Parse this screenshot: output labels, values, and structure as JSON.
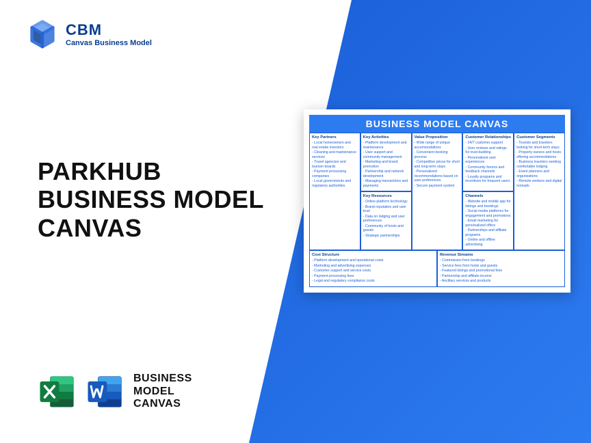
{
  "brand": {
    "abbr": "CBM",
    "tagline": "Canvas Business Model"
  },
  "main_title": {
    "line1": "PARKHUB",
    "line2": "BUSINESS MODEL",
    "line3": "CANVAS"
  },
  "footer_label": {
    "line1": "BUSINESS",
    "line2": "MODEL",
    "line3": "CANVAS"
  },
  "colors": {
    "blue": "#2d7bf0",
    "dark_blue": "#0a3d91",
    "excel": "#1e7244",
    "excel_light": "#21a366",
    "word": "#2b579a",
    "word_light": "#41a5ee"
  },
  "canvas": {
    "title": "BUSINESS MODEL CANVAS",
    "key_partners": {
      "h": "Key Partners",
      "items": [
        "Local homeowners and real estate investors",
        "Cleaning and maintenance services",
        "Travel agencies and tourism boards",
        "Payment processing companies",
        "Local governments and regulatory authorities"
      ]
    },
    "key_activities": {
      "h": "Key Activities",
      "items": [
        "Platform development and maintenance",
        "User support and community management",
        "Marketing and brand promotion",
        "Partnership and network development",
        "Managing transactions and payments"
      ]
    },
    "key_resources": {
      "h": "Key Resources",
      "items": [
        "Online platform technology",
        "Brand reputation and user trust",
        "Data on lodging and user preferences",
        "Community of hosts and guests",
        "Strategic partnerships"
      ]
    },
    "value_prop": {
      "h": "Value Proposition",
      "items": [
        "Wide range of unique accommodations",
        "Convenient booking process",
        "Competitive prices for short and long-term stays",
        "Personalized recommendations based on user preferences",
        "Secure payment system"
      ]
    },
    "cust_rel": {
      "h": "Customer Relationships",
      "items": [
        "24/7 customer support",
        "User reviews and ratings for trust-building",
        "Personalized user experiences",
        "Community forums and feedback channels",
        "Loyalty programs and incentives for frequent users"
      ]
    },
    "channels": {
      "h": "Channels",
      "items": [
        "Website and mobile app for listings and bookings",
        "Social media platforms for engagement and promotions",
        "Email marketing for personalized offers",
        "Partnerships and affiliate programs",
        "Online and offline advertising"
      ]
    },
    "cust_seg": {
      "h": "Customer Segments",
      "items": [
        "Tourists and travelers looking for short-term stays",
        "Property owners and hosts offering accommodations",
        "Business travelers seeking comfortable lodging",
        "Event planners and organizations",
        "Remote workers and digital nomads"
      ]
    },
    "cost": {
      "h": "Cost Structure",
      "items": [
        "Platform development and operational costs",
        "Marketing and advertising expenses",
        "Customer support and service costs",
        "Payment processing fees",
        "Legal and regulatory compliance costs"
      ]
    },
    "revenue": {
      "h": "Revenue Streams",
      "items": [
        "Commission from bookings",
        "Service fees from hosts and guests",
        "Featured listings and promotional fees",
        "Partnership and affiliate income",
        "Ancillary services and products"
      ]
    }
  }
}
